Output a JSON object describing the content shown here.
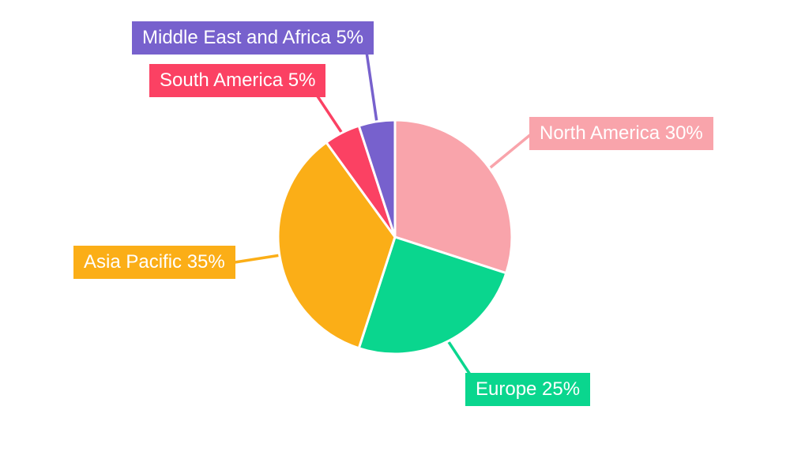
{
  "chart_data": {
    "type": "pie",
    "labels": [
      "North America",
      "Europe",
      "Asia Pacific",
      "South America",
      "Middle East and Africa"
    ],
    "values": [
      30,
      25,
      35,
      5,
      5
    ],
    "unit": "%",
    "display_labels": [
      "North America 30%",
      "Europe 25%",
      "Asia Pacific 35%",
      "South America 5%",
      "Middle East and Africa 5%"
    ],
    "colors": [
      "#F9A4AB",
      "#0AD68E",
      "#FBAE17",
      "#FB4163",
      "#7761CD"
    ],
    "label_text_color": "#FFFFFF",
    "background": "#FFFFFF",
    "slice_gap_color": "#FFFFFF",
    "start_angle_deg": 0,
    "direction": "clockwise",
    "legend_position": "callout-labels"
  }
}
